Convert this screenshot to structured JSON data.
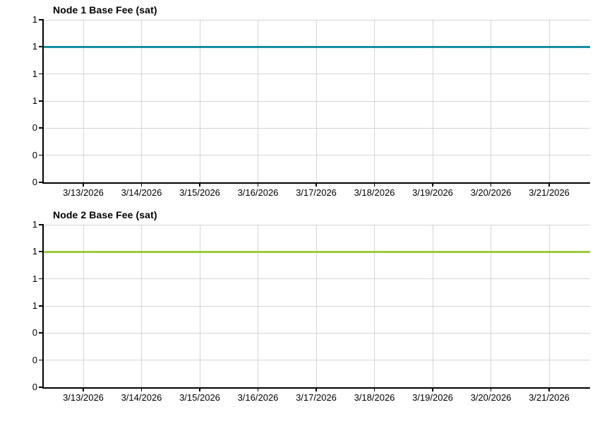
{
  "page": {
    "background": "#ffffff",
    "grid_color": "#d4d4d4",
    "axis_color": "#000000",
    "text_color": "#000000"
  },
  "chart_data": [
    {
      "type": "line",
      "title": "Node 1 Base Fee (sat)",
      "x": [
        "3/13/2026",
        "3/14/2026",
        "3/15/2026",
        "3/16/2026",
        "3/17/2026",
        "3/18/2026",
        "3/19/2026",
        "3/20/2026",
        "3/21/2026"
      ],
      "series": [
        {
          "name": "Node 1 Base Fee",
          "values": [
            1,
            1,
            1,
            1,
            1,
            1,
            1,
            1,
            1
          ]
        }
      ],
      "xlabel": "",
      "ylabel": "",
      "ylim": [
        0,
        1.2
      ],
      "y_ticks": [
        1.2,
        1.0,
        0.8,
        0.6,
        0.4,
        0.2,
        0
      ],
      "y_tick_labels": [
        "1",
        "1",
        "1",
        "1",
        "0",
        "0",
        "0"
      ],
      "grid": true,
      "legend": "none",
      "line_color": "#1590a0"
    },
    {
      "type": "line",
      "title": "Node 2 Base Fee (sat)",
      "x": [
        "3/13/2026",
        "3/14/2026",
        "3/15/2026",
        "3/16/2026",
        "3/17/2026",
        "3/18/2026",
        "3/19/2026",
        "3/20/2026",
        "3/21/2026"
      ],
      "series": [
        {
          "name": "Node 2 Base Fee",
          "values": [
            1,
            1,
            1,
            1,
            1,
            1,
            1,
            1,
            1
          ]
        }
      ],
      "xlabel": "",
      "ylabel": "",
      "ylim": [
        0,
        1.2
      ],
      "y_ticks": [
        1.2,
        1.0,
        0.8,
        0.6,
        0.4,
        0.2,
        0
      ],
      "y_tick_labels": [
        "1",
        "1",
        "1",
        "1",
        "0",
        "0",
        "0"
      ],
      "grid": true,
      "legend": "none",
      "line_color": "#9ccb3b"
    }
  ]
}
